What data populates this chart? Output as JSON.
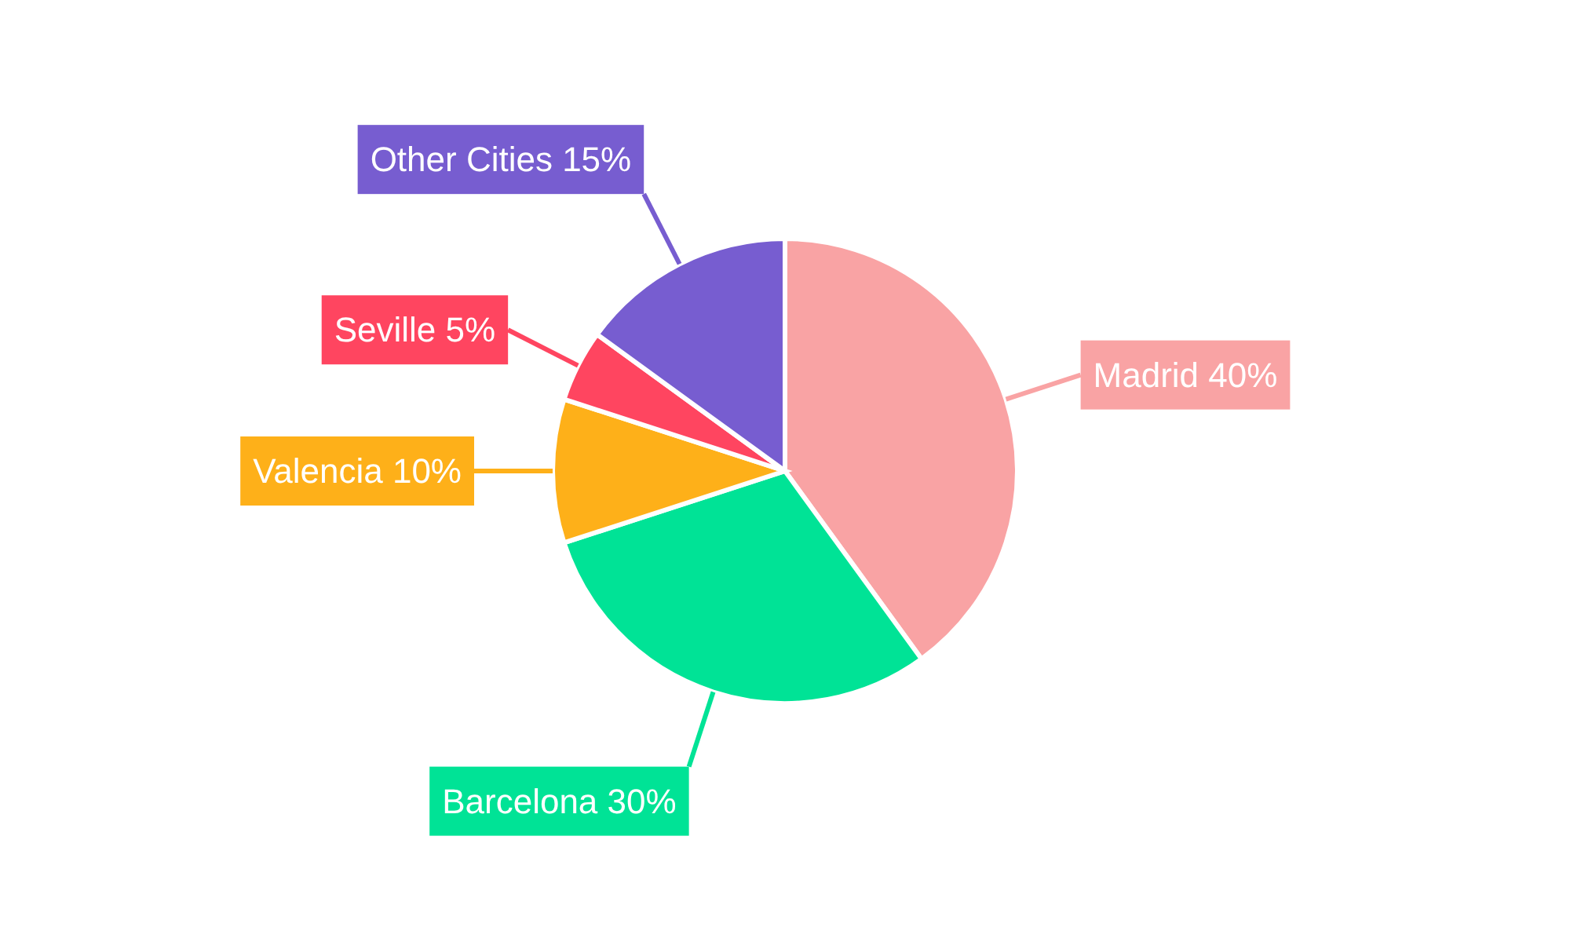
{
  "chart_data": {
    "type": "pie",
    "categories": [
      "Madrid",
      "Barcelona",
      "Valencia",
      "Seville",
      "Other Cities"
    ],
    "values": [
      40,
      30,
      10,
      5,
      15
    ],
    "value_labels": [
      "40%",
      "30%",
      "10%",
      "5%",
      "15%"
    ],
    "colors": [
      "#f9a3a4",
      "#00e396",
      "#feb019",
      "#ff4560",
      "#775dd0"
    ]
  }
}
